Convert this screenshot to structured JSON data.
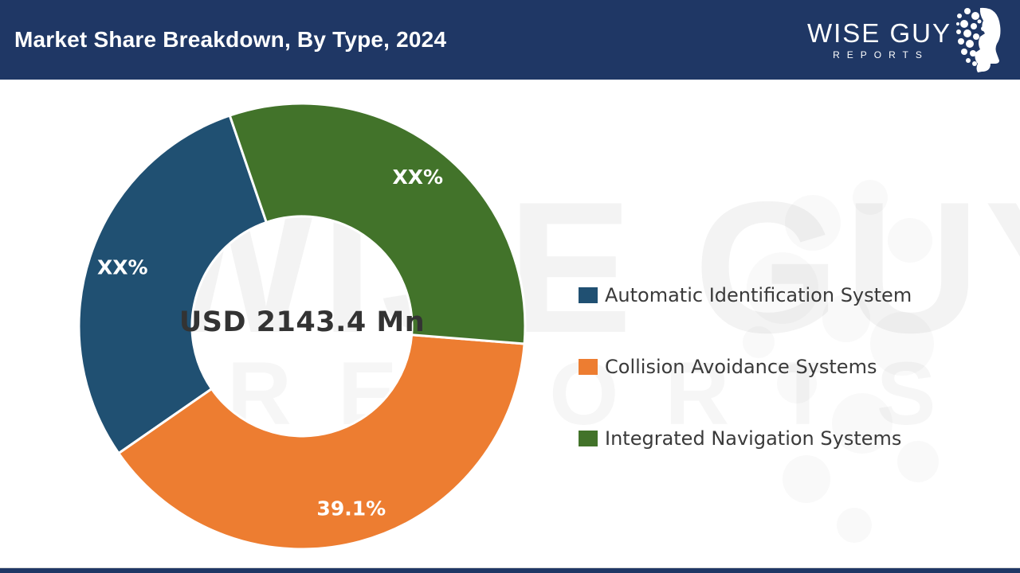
{
  "header": {
    "title": "Market Share Breakdown, By Type, 2024",
    "bg_color": "#1F3765",
    "logo": {
      "line1": "WISE GUY",
      "line2": "REPORTS"
    }
  },
  "watermark": {
    "line1": "WISE GUY",
    "line2": "REPORTS"
  },
  "chart_data": {
    "type": "pie",
    "subtype": "donut",
    "title": "Market Share Breakdown, By Type, 2024",
    "center_label": "USD 2143.4 Mn",
    "legend_position": "right",
    "start_angle": 108.9,
    "direction": "counterclockwise",
    "slices": [
      {
        "name": "Automatic Identification System",
        "value": 29.4,
        "display_label": "XX%",
        "color": "#205072"
      },
      {
        "name": "Collision Avoidance Systems",
        "value": 39.1,
        "display_label": "39.1%",
        "color": "#ED7D31"
      },
      {
        "name": "Integrated Navigation Systems",
        "value": 31.5,
        "display_label": "XX%",
        "color": "#42732A"
      }
    ]
  },
  "footer": {
    "bar_color": "#1F3765"
  }
}
